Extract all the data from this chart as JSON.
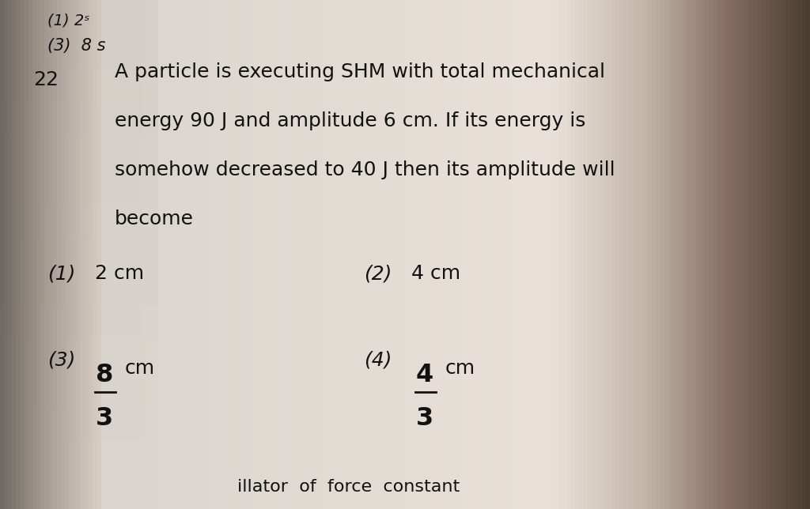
{
  "text_color": "#111111",
  "bg_base": "#d8d0c8",
  "prev_option1": "(1) 2ˢ",
  "prev_option3": "(3)  8 s",
  "question_number": "22",
  "question_line1": "A particle is executing SHM with total mechanical",
  "question_line2": "energy 90 J and amplitude 6 cm. If its energy is",
  "question_line3": "somehow decreased to 40 J then its amplitude will",
  "question_line4": "become",
  "opt1_label": "(1)",
  "opt1_text": "2 cm",
  "opt2_label": "(2)",
  "opt2_text": "4 cm",
  "opt3_label": "(3)",
  "opt3_num": "8",
  "opt3_den": "3",
  "opt3_unit": "cm",
  "opt4_label": "(4)",
  "opt4_num": "4",
  "opt4_den": "3",
  "opt4_unit": "cm",
  "bottom_text": "illator  of  force  constant"
}
